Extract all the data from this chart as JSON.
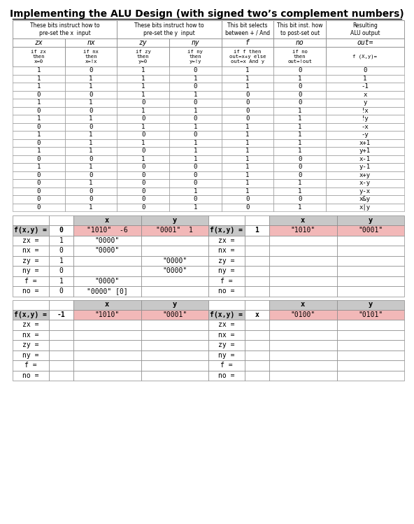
{
  "title": "Implementing the ALU Design (with signed two’s complement numbers)",
  "col_headers_row": [
    "zx",
    "nx",
    "zy",
    "ny",
    "f",
    "no",
    "out="
  ],
  "col_headers_row2": [
    "if zx\nthen\nx=0",
    "if nx\nthen\nx=!x",
    "if zy\nthen\ny=0",
    "if ny\nthen\ny=!y",
    "if f then\nout=x+y else\nout=x And y",
    "if no\nthen\nout=!out",
    "f (X,y)="
  ],
  "group_headers": [
    "These bits instruct how to\npre-set the x  input",
    "These bits instruct how to\npre-set the y  input",
    "This bit selects\nbetween + / And",
    "This bit inst. how\nto post-set out",
    "Resulting\nALU output"
  ],
  "table_data": [
    [
      "1",
      "0",
      "1",
      "0",
      "1",
      "0",
      "0"
    ],
    [
      "1",
      "1",
      "1",
      "1",
      "1",
      "1",
      "1"
    ],
    [
      "1",
      "1",
      "1",
      "0",
      "1",
      "0",
      "-1"
    ],
    [
      "0",
      "0",
      "1",
      "1",
      "0",
      "0",
      "x"
    ],
    [
      "1",
      "1",
      "0",
      "0",
      "0",
      "0",
      "y"
    ],
    [
      "0",
      "0",
      "1",
      "1",
      "0",
      "1",
      "!x"
    ],
    [
      "1",
      "1",
      "0",
      "0",
      "0",
      "1",
      "!y"
    ],
    [
      "0",
      "0",
      "1",
      "1",
      "1",
      "1",
      "-x"
    ],
    [
      "1",
      "1",
      "0",
      "0",
      "1",
      "1",
      "-y"
    ],
    [
      "0",
      "1",
      "1",
      "1",
      "1",
      "1",
      "x+1"
    ],
    [
      "1",
      "1",
      "0",
      "1",
      "1",
      "1",
      "y+1"
    ],
    [
      "0",
      "0",
      "1",
      "1",
      "1",
      "0",
      "x-1"
    ],
    [
      "1",
      "1",
      "0",
      "0",
      "1",
      "0",
      "y-1"
    ],
    [
      "0",
      "0",
      "0",
      "0",
      "1",
      "0",
      "x+y"
    ],
    [
      "0",
      "1",
      "0",
      "0",
      "1",
      "1",
      "x-y"
    ],
    [
      "0",
      "0",
      "0",
      "1",
      "1",
      "1",
      "y-x"
    ],
    [
      "0",
      "0",
      "0",
      "0",
      "0",
      "0",
      "x&y"
    ],
    [
      "0",
      "1",
      "0",
      "1",
      "0",
      "1",
      "x|y"
    ]
  ],
  "bt_left_header": [
    "",
    "",
    "x",
    "y"
  ],
  "bt_right_header": [
    "",
    "",
    "x",
    "y"
  ],
  "bt_left_rows": [
    [
      "f(x,y) =",
      "0",
      "\"1010\"  -6",
      "\"0001\"  1"
    ],
    [
      "zx =",
      "1",
      "\"0000\"",
      ""
    ],
    [
      "nx =",
      "0",
      "\"0000\"",
      ""
    ],
    [
      "zy =",
      "1",
      "",
      "\"0000\""
    ],
    [
      "ny =",
      "0",
      "",
      "\"0000\""
    ],
    [
      "f =",
      "1",
      "\"0000\"",
      ""
    ],
    [
      "no =",
      "0",
      "\"0000\" [0]",
      ""
    ]
  ],
  "bt_right_rows": [
    [
      "f(x,y) =",
      "1",
      "\"1010\"",
      "\"0001\""
    ],
    [
      "zx =",
      "",
      "",
      ""
    ],
    [
      "nx =",
      "",
      "",
      ""
    ],
    [
      "zy =",
      "",
      "",
      ""
    ],
    [
      "ny =",
      "",
      "",
      ""
    ],
    [
      "f =",
      "",
      "",
      ""
    ],
    [
      "no =",
      "",
      "",
      ""
    ]
  ],
  "bt_left2_rows": [
    [
      "f(x,y) =",
      "-1",
      "\"1010\"",
      "\"0001\""
    ],
    [
      "zx =",
      "",
      "",
      ""
    ],
    [
      "nx =",
      "",
      "",
      ""
    ],
    [
      "zy =",
      "",
      "",
      ""
    ],
    [
      "ny =",
      "",
      "",
      ""
    ],
    [
      "f =",
      "",
      "",
      ""
    ],
    [
      "no =",
      "",
      "",
      ""
    ]
  ],
  "bt_right2_rows": [
    [
      "f(x,y) =",
      "x",
      "\"0100\"",
      "\"0101\""
    ],
    [
      "zx =",
      "",
      "",
      ""
    ],
    [
      "nx =",
      "",
      "",
      ""
    ],
    [
      "zy =",
      "",
      "",
      ""
    ],
    [
      "ny =",
      "",
      "",
      ""
    ],
    [
      "f =",
      "",
      "",
      ""
    ],
    [
      "no =",
      "",
      "",
      ""
    ]
  ],
  "bg_color": "#ffffff",
  "gray_bg": "#c8c8c8",
  "pink_bg": "#f2b8b8",
  "line_color": "#888888"
}
